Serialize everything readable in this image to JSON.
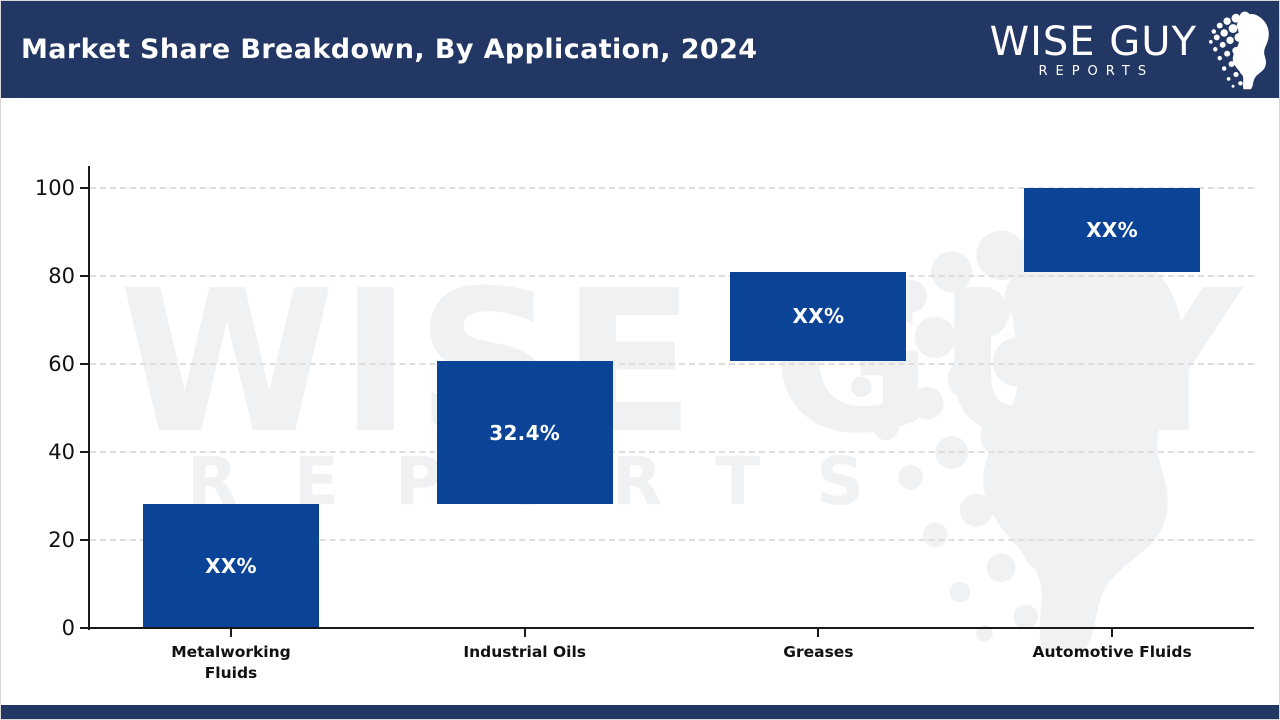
{
  "header": {
    "title": "Market Share Breakdown, By Application, 2024",
    "brand_name": "WISE GUY",
    "brand_sub": "REPORTS",
    "bg_color": "#223764"
  },
  "watermark": {
    "line1": "WISE GUY",
    "line2": "REPORTS"
  },
  "chart_data": {
    "type": "bar",
    "subtype": "floating-waterfall-segments",
    "title": "Market Share Breakdown, By Application, 2024",
    "categories": [
      "Metalworking\nFluids",
      "Industrial Oils",
      "Greases",
      "Automotive Fluids"
    ],
    "bars": [
      {
        "category": "Metalworking\nFluids",
        "start": 0,
        "end": 28.2,
        "label": "XX%"
      },
      {
        "category": "Industrial Oils",
        "start": 28.2,
        "end": 60.6,
        "label": "32.4%"
      },
      {
        "category": "Greases",
        "start": 60.6,
        "end": 81.0,
        "label": "XX%"
      },
      {
        "category": "Automotive Fluids",
        "start": 81.0,
        "end": 100,
        "label": "XX%"
      }
    ],
    "xlabel": "",
    "ylabel": "",
    "ylim": [
      0,
      105
    ],
    "yticks": [
      0,
      20,
      40,
      60,
      80,
      100
    ],
    "grid": "horizontal-dashed",
    "legend": "none",
    "bar_color": "#0b4396",
    "bar_label_color": "#ffffff",
    "axis_color": "#1a1a1a",
    "grid_color": "#dedede"
  },
  "footer": {
    "bg_color": "#223764"
  }
}
